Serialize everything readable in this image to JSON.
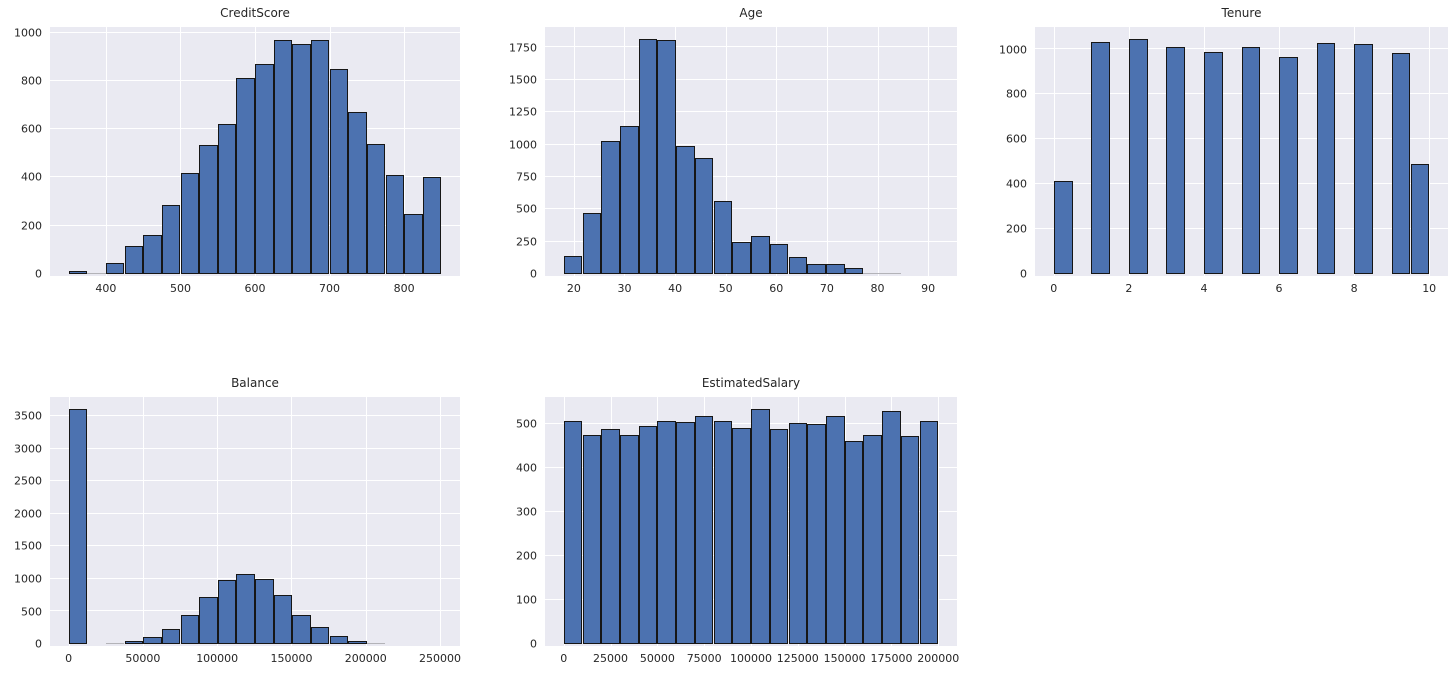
{
  "style": {
    "figure_background": "#ffffff",
    "axes_background": "#eaeaf2",
    "grid_color": "#ffffff",
    "bar_fill": "#4c72b0",
    "bar_edge": "#161616",
    "text_color": "#262626"
  },
  "chart_data": [
    {
      "type": "bar",
      "variant": "histogram",
      "title": "CreditScore",
      "xlim": [
        325,
        875
      ],
      "ylim": [
        0,
        1023
      ],
      "grid": true,
      "xticks": {
        "values": [
          400,
          500,
          600,
          700,
          800
        ],
        "labels": [
          "400",
          "500",
          "600",
          "700",
          "800"
        ]
      },
      "yticks": {
        "values": [
          0,
          200,
          400,
          600,
          800,
          1000
        ],
        "labels": [
          "0",
          "200",
          "400",
          "600",
          "800",
          "1000"
        ]
      },
      "bars": [
        [
          350,
          375,
          11
        ],
        [
          375,
          400,
          2
        ],
        [
          400,
          425,
          45
        ],
        [
          425,
          450,
          117
        ],
        [
          450,
          475,
          163
        ],
        [
          475,
          500,
          285
        ],
        [
          500,
          525,
          420
        ],
        [
          525,
          550,
          535
        ],
        [
          550,
          575,
          620
        ],
        [
          575,
          600,
          810
        ],
        [
          600,
          625,
          868
        ],
        [
          625,
          650,
          969
        ],
        [
          650,
          675,
          954
        ],
        [
          675,
          700,
          969
        ],
        [
          700,
          725,
          850
        ],
        [
          725,
          750,
          670
        ],
        [
          750,
          775,
          540
        ],
        [
          775,
          800,
          410
        ],
        [
          800,
          825,
          250
        ],
        [
          825,
          850,
          400
        ]
      ]
    },
    {
      "type": "bar",
      "variant": "histogram",
      "title": "Age",
      "xlim": [
        14.3,
        95.7
      ],
      "ylim": [
        0,
        1908
      ],
      "grid": true,
      "xticks": {
        "values": [
          20,
          30,
          40,
          50,
          60,
          70,
          80,
          90
        ],
        "labels": [
          "20",
          "30",
          "40",
          "50",
          "60",
          "70",
          "80",
          "90"
        ]
      },
      "yticks": {
        "values": [
          0,
          250,
          500,
          750,
          1000,
          1250,
          1500,
          1750
        ],
        "labels": [
          "0",
          "250",
          "500",
          "750",
          "1000",
          "1250",
          "1500",
          "1750"
        ]
      },
      "bars": [
        [
          18,
          21.7,
          140
        ],
        [
          21.7,
          25.4,
          470
        ],
        [
          25.4,
          29.1,
          1030
        ],
        [
          29.1,
          32.8,
          1145
        ],
        [
          32.8,
          36.5,
          1815
        ],
        [
          36.5,
          40.2,
          1805
        ],
        [
          40.2,
          43.9,
          985
        ],
        [
          43.9,
          47.6,
          895
        ],
        [
          47.6,
          51.3,
          565
        ],
        [
          51.3,
          55.0,
          250
        ],
        [
          55.0,
          58.7,
          295
        ],
        [
          58.7,
          62.4,
          228
        ],
        [
          62.4,
          66.1,
          135
        ],
        [
          66.1,
          69.8,
          76
        ],
        [
          69.8,
          73.5,
          74
        ],
        [
          73.5,
          77.2,
          46
        ],
        [
          77.2,
          80.9,
          8
        ],
        [
          80.9,
          84.6,
          6
        ],
        [
          84.6,
          88.3,
          2
        ],
        [
          88.3,
          92.0,
          1
        ]
      ]
    },
    {
      "type": "bar",
      "variant": "histogram",
      "title": "Tenure",
      "xlim": [
        -0.5,
        10.5
      ],
      "ylim": [
        0,
        1100
      ],
      "grid": true,
      "xticks": {
        "values": [
          0,
          2,
          4,
          6,
          8,
          10
        ],
        "labels": [
          "0",
          "2",
          "4",
          "6",
          "8",
          "10"
        ]
      },
      "yticks": {
        "values": [
          0,
          200,
          400,
          600,
          800,
          1000
        ],
        "labels": [
          "0",
          "200",
          "400",
          "600",
          "800",
          "1000"
        ]
      },
      "bars": [
        [
          0,
          0.5,
          413
        ],
        [
          1,
          1.5,
          1035
        ],
        [
          2,
          2.5,
          1048
        ],
        [
          3,
          3.5,
          1009
        ],
        [
          4,
          4.5,
          989
        ],
        [
          5,
          5.5,
          1012
        ],
        [
          6,
          6.5,
          967
        ],
        [
          7,
          7.5,
          1028
        ],
        [
          8,
          8.5,
          1025
        ],
        [
          9,
          9.5,
          984
        ],
        [
          9.5,
          10,
          490
        ]
      ]
    },
    {
      "type": "bar",
      "variant": "histogram",
      "title": "Balance",
      "xlim": [
        -12545,
        263443
      ],
      "ylim": [
        0,
        3798
      ],
      "grid": true,
      "xticks": {
        "values": [
          0,
          50000,
          100000,
          150000,
          200000,
          250000
        ],
        "labels": [
          "0",
          "50000",
          "100000",
          "150000",
          "200000",
          "250000"
        ]
      },
      "yticks": {
        "values": [
          0,
          500,
          1000,
          1500,
          2000,
          2500,
          3000,
          3500
        ],
        "labels": [
          "0",
          "500",
          "1000",
          "1500",
          "2000",
          "2500",
          "3000",
          "3500"
        ]
      },
      "bars": [
        [
          0,
          12545,
          3617
        ],
        [
          12545,
          25090,
          0
        ],
        [
          25090,
          37635,
          8
        ],
        [
          37635,
          50180,
          48
        ],
        [
          50180,
          62724,
          110
        ],
        [
          62724,
          75269,
          230
        ],
        [
          75269,
          87814,
          450
        ],
        [
          87814,
          100359,
          720
        ],
        [
          100359,
          112904,
          990
        ],
        [
          112904,
          125449,
          1075
        ],
        [
          125449,
          137994,
          995
        ],
        [
          137994,
          150539,
          760
        ],
        [
          150539,
          163084,
          450
        ],
        [
          163084,
          175629,
          262
        ],
        [
          175629,
          188173,
          125
        ],
        [
          188173,
          200718,
          40
        ],
        [
          200718,
          213263,
          18
        ],
        [
          213263,
          225808,
          0
        ],
        [
          225808,
          238353,
          0
        ],
        [
          238353,
          250898,
          0
        ]
      ]
    },
    {
      "type": "bar",
      "variant": "histogram",
      "title": "EstimatedSalary",
      "xlim": [
        -9988,
        209992
      ],
      "ylim": [
        0,
        562
      ],
      "grid": true,
      "xticks": {
        "values": [
          0,
          25000,
          50000,
          75000,
          100000,
          125000,
          150000,
          175000,
          200000
        ],
        "labels": [
          "0",
          "25000",
          "50000",
          "75000",
          "100000",
          "125000",
          "150000",
          "175000",
          "200000"
        ]
      },
      "yticks": {
        "values": [
          0,
          100,
          200,
          300,
          400,
          500
        ],
        "labels": [
          "0",
          "100",
          "200",
          "300",
          "400",
          "500"
        ]
      },
      "bars": [
        [
          12,
          10011,
          508
        ],
        [
          10011,
          20010,
          475
        ],
        [
          20010,
          30009,
          490
        ],
        [
          30009,
          40008,
          475
        ],
        [
          40008,
          50007,
          495
        ],
        [
          50007,
          60006,
          507
        ],
        [
          60006,
          70005,
          505
        ],
        [
          70005,
          80004,
          519
        ],
        [
          80004,
          90003,
          508
        ],
        [
          90003,
          100002,
          492
        ],
        [
          100002,
          110001,
          535
        ],
        [
          110001,
          120000,
          490
        ],
        [
          120000,
          129999,
          503
        ],
        [
          129999,
          139998,
          500
        ],
        [
          139998,
          149997,
          518
        ],
        [
          149997,
          159996,
          461
        ],
        [
          159996,
          169995,
          476
        ],
        [
          169995,
          179994,
          530
        ],
        [
          179994,
          189993,
          473
        ],
        [
          189993,
          199992,
          508
        ]
      ]
    }
  ]
}
